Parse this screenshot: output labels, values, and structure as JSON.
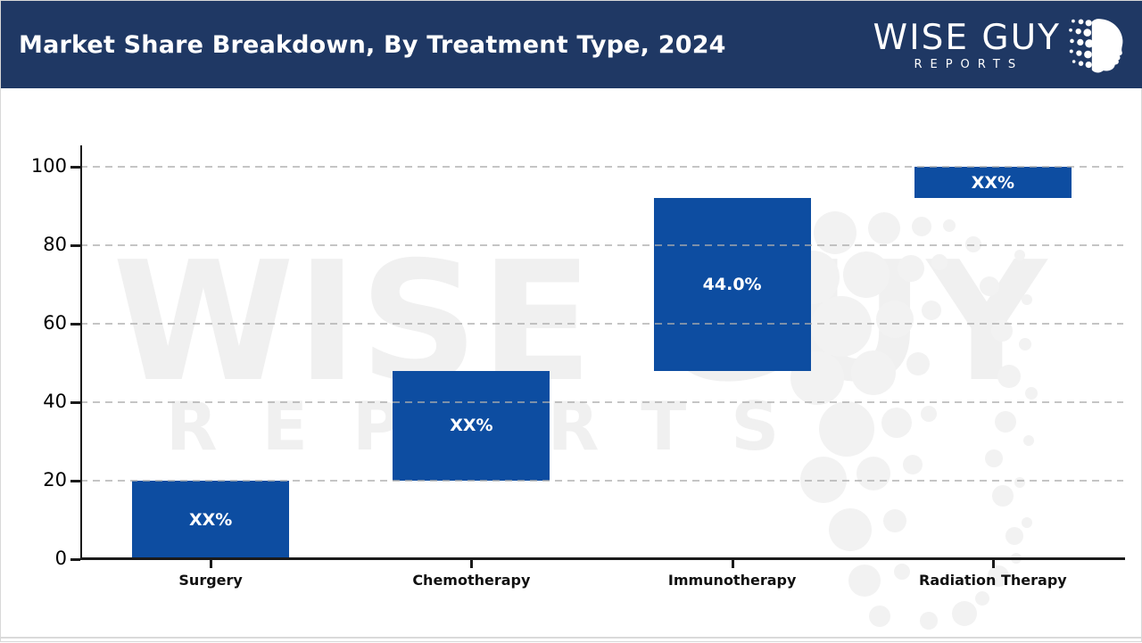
{
  "header": {
    "title": "Market Share Breakdown, By Treatment Type, 2024",
    "logo": {
      "line1": "WISE GUY",
      "line2": "REPORTS"
    }
  },
  "watermark": {
    "line1": "WISE GUY",
    "line2": "REPORTS"
  },
  "colors": {
    "header_bg": "#1f3864",
    "bar": "#0d4da1",
    "grid": "#acacac",
    "axis": "#1a1a1a",
    "bar_label": "#ffffff",
    "title_text": "#ffffff",
    "watermark": "#f0f0f0"
  },
  "chart_data": {
    "type": "bar",
    "subtype": "waterfall",
    "title": "Market Share Breakdown, By Treatment Type, 2024",
    "categories": [
      "Surgery",
      "Chemotherapy",
      "Immunotherapy",
      "Radiation Therapy"
    ],
    "segments": [
      {
        "category": "Surgery",
        "start": 0,
        "end": 20,
        "label": "XX%"
      },
      {
        "category": "Chemotherapy",
        "start": 20,
        "end": 48,
        "label": "XX%"
      },
      {
        "category": "Immunotherapy",
        "start": 48,
        "end": 92,
        "label": "44.0%"
      },
      {
        "category": "Radiation Therapy",
        "start": 92,
        "end": 100,
        "label": "XX%"
      }
    ],
    "y_ticks": [
      0,
      20,
      40,
      60,
      80,
      100
    ],
    "ylim": [
      0,
      100
    ],
    "xlabel": "",
    "ylabel": "",
    "grid": "horizontal-dashed",
    "legend": "none"
  }
}
